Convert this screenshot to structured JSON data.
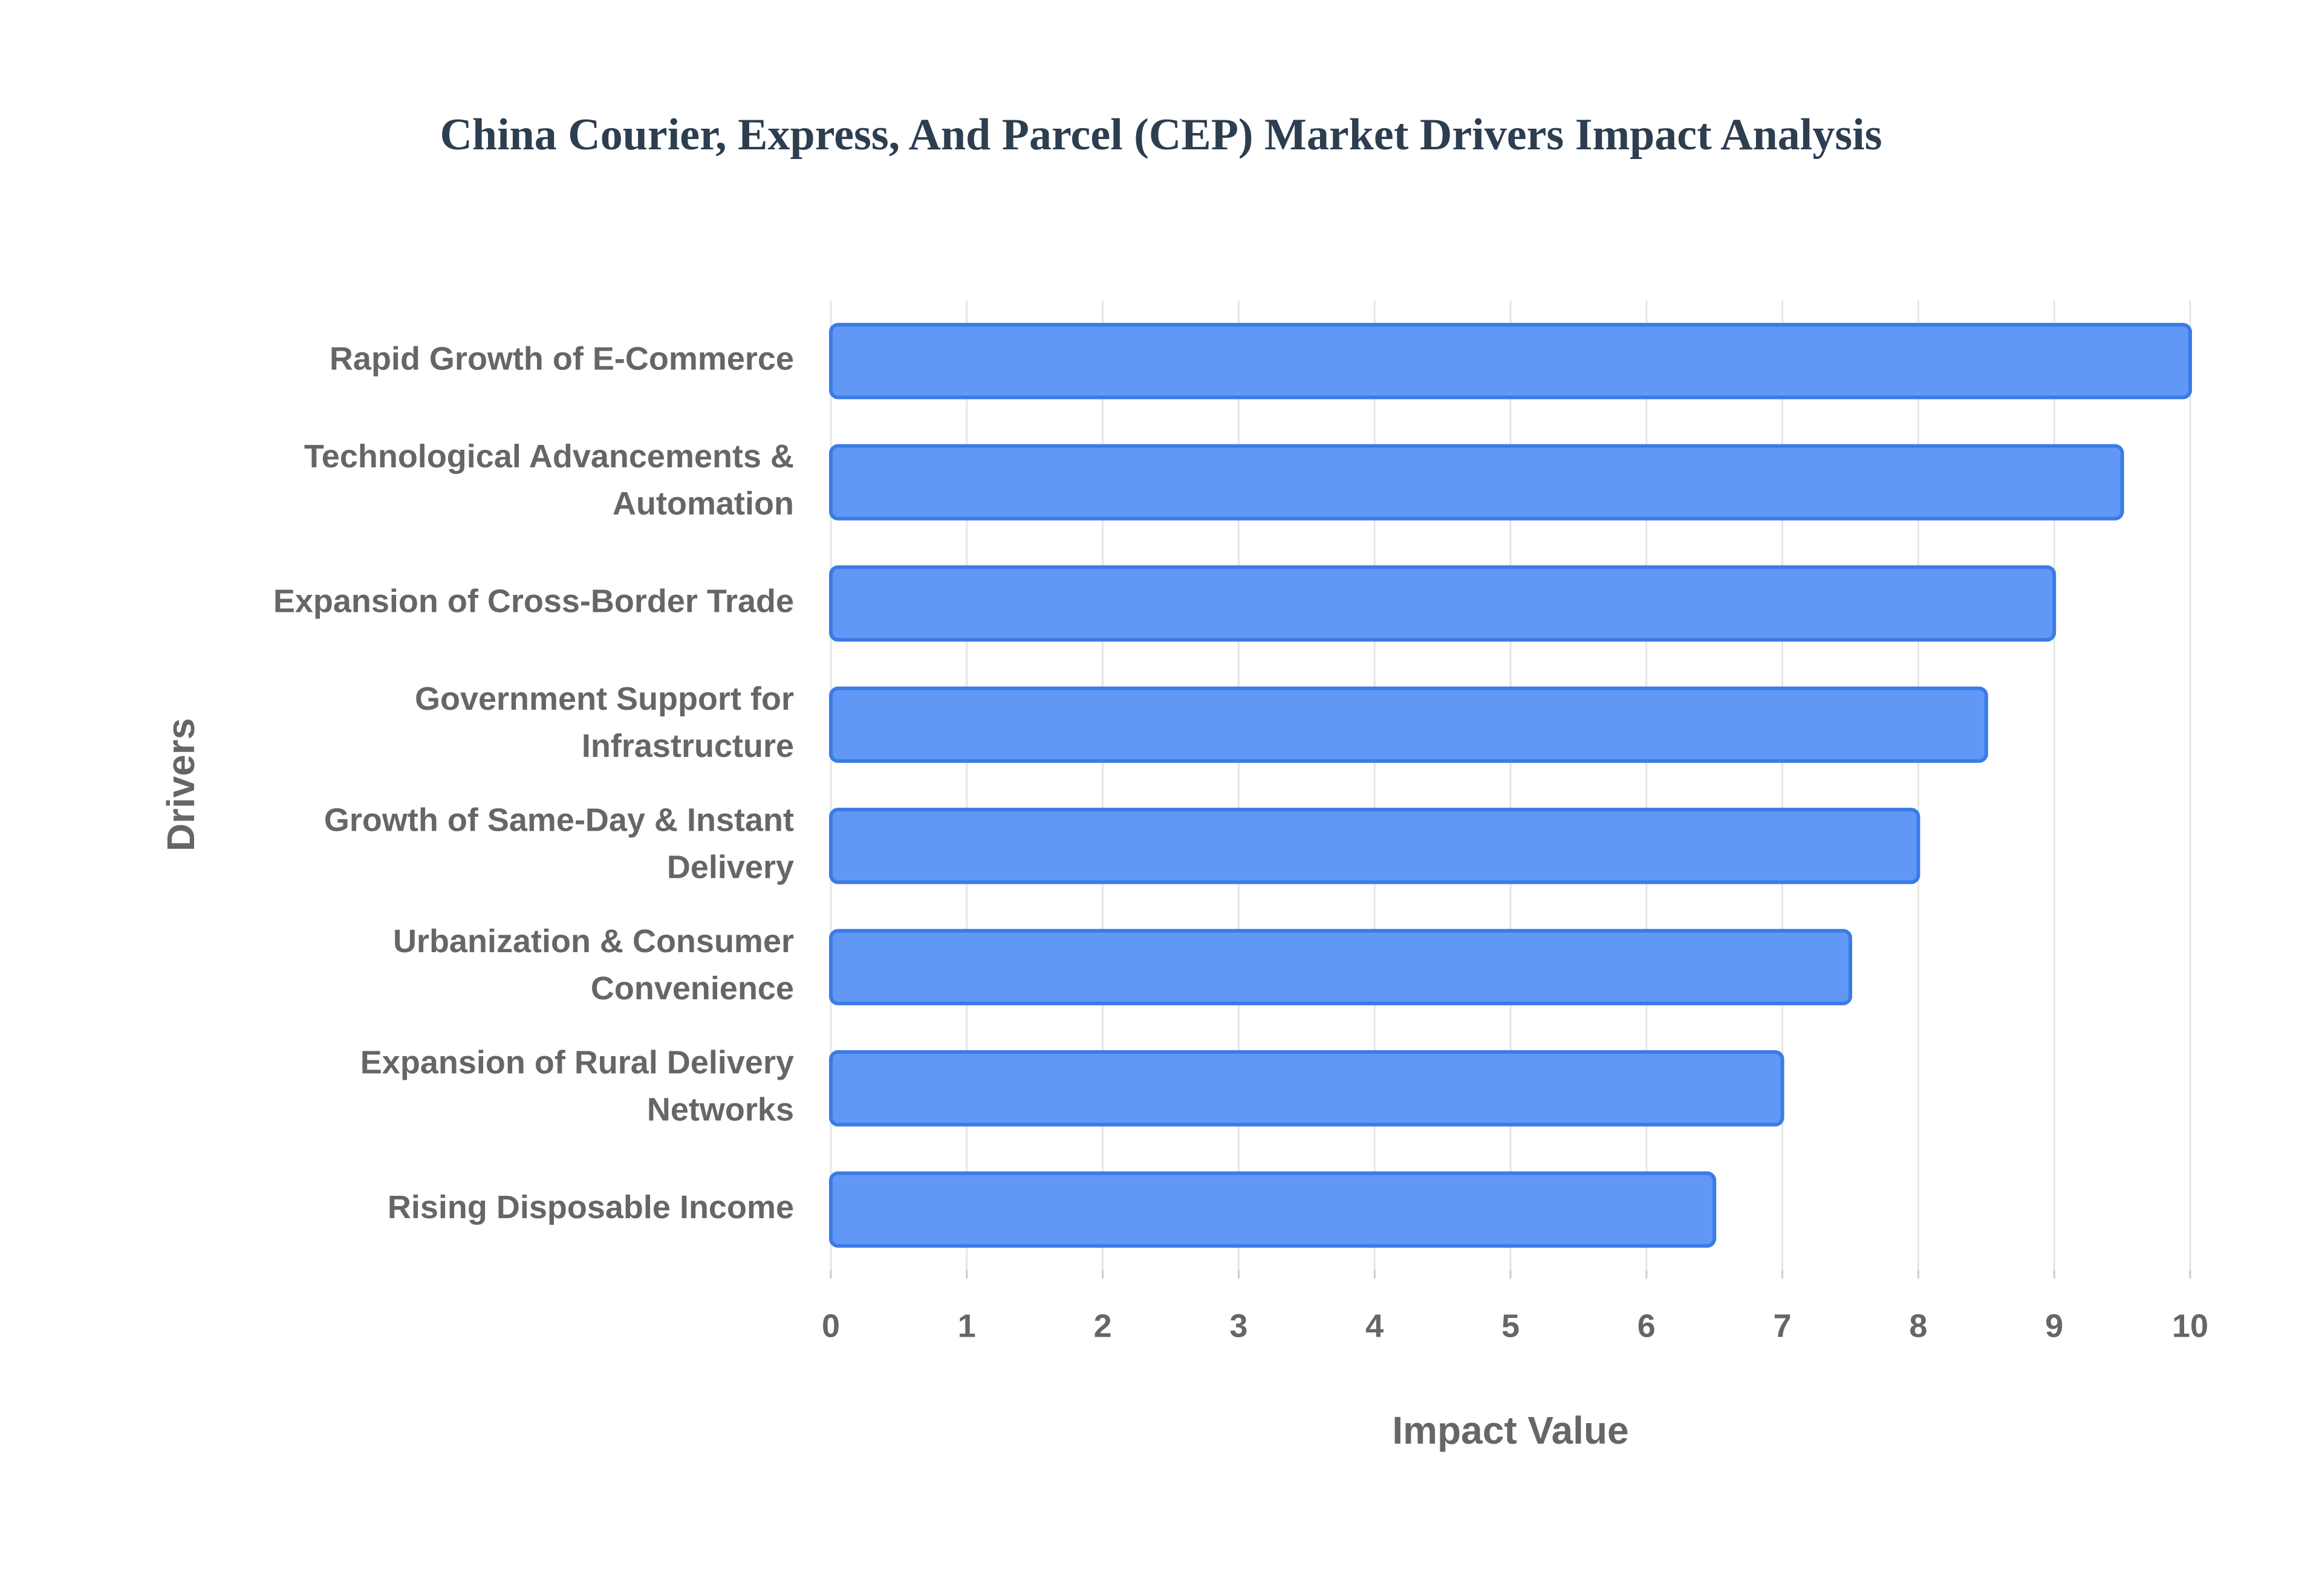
{
  "chart_data": {
    "type": "bar",
    "orientation": "horizontal",
    "title": "China Courier, Express, And Parcel (CEP) Market Drivers Impact Analysis",
    "x_label": "Impact Value",
    "y_label": "Drivers",
    "categories": [
      "Rapid Growth of E-Commerce",
      "Technological Advancements & Automation",
      "Expansion of Cross-Border Trade",
      "Government Support for Infrastructure",
      "Growth of Same-Day & Instant Delivery",
      "Urbanization & Consumer Convenience",
      "Expansion of Rural Delivery Networks",
      "Rising Disposable Income"
    ],
    "values": [
      10,
      9.5,
      9,
      8.5,
      8,
      7.5,
      7,
      6.5
    ],
    "color": "#6198f5",
    "edge_color": "#3b7be6",
    "xlim": [
      0,
      10
    ],
    "xticks": [
      0,
      1,
      2,
      3,
      4,
      5,
      6,
      7,
      8,
      9,
      10
    ],
    "grid": true
  }
}
